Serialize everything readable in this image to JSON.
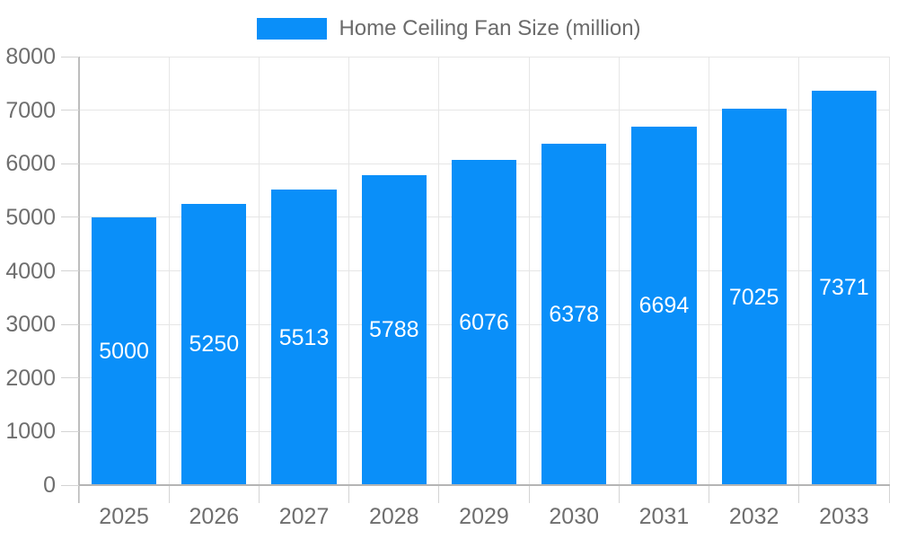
{
  "colors": {
    "bar": "#0a8ff9",
    "grid": "#e6e6e6",
    "axis": "#bdbdbd",
    "tick_label": "#6e6e6e",
    "legend_text": "#6b6b6b",
    "value_label": "#ffffff",
    "background": "#ffffff"
  },
  "legend": {
    "label": "Home Ceiling Fan Size (million)"
  },
  "chart_data": {
    "type": "bar",
    "title": "Home Ceiling Fan Size (million)",
    "categories": [
      "2025",
      "2026",
      "2027",
      "2028",
      "2029",
      "2030",
      "2031",
      "2032",
      "2033"
    ],
    "values": [
      5000,
      5250,
      5513,
      5788,
      6076,
      6378,
      6694,
      7025,
      7371
    ],
    "value_labels": [
      "5000",
      "5250",
      "5513",
      "5788",
      "6076",
      "6378",
      "6694",
      "7025",
      "7371"
    ],
    "xlabel": "",
    "ylabel": "",
    "ylim": [
      0,
      8000
    ],
    "yticks": [
      0,
      1000,
      2000,
      3000,
      4000,
      5000,
      6000,
      7000,
      8000
    ],
    "ytick_labels": [
      "0",
      "1000",
      "2000",
      "3000",
      "4000",
      "5000",
      "6000",
      "7000",
      "8000"
    ],
    "grid": true,
    "legend_position": "top",
    "value_label_position": "inside-center",
    "bar_fraction": 0.72
  }
}
